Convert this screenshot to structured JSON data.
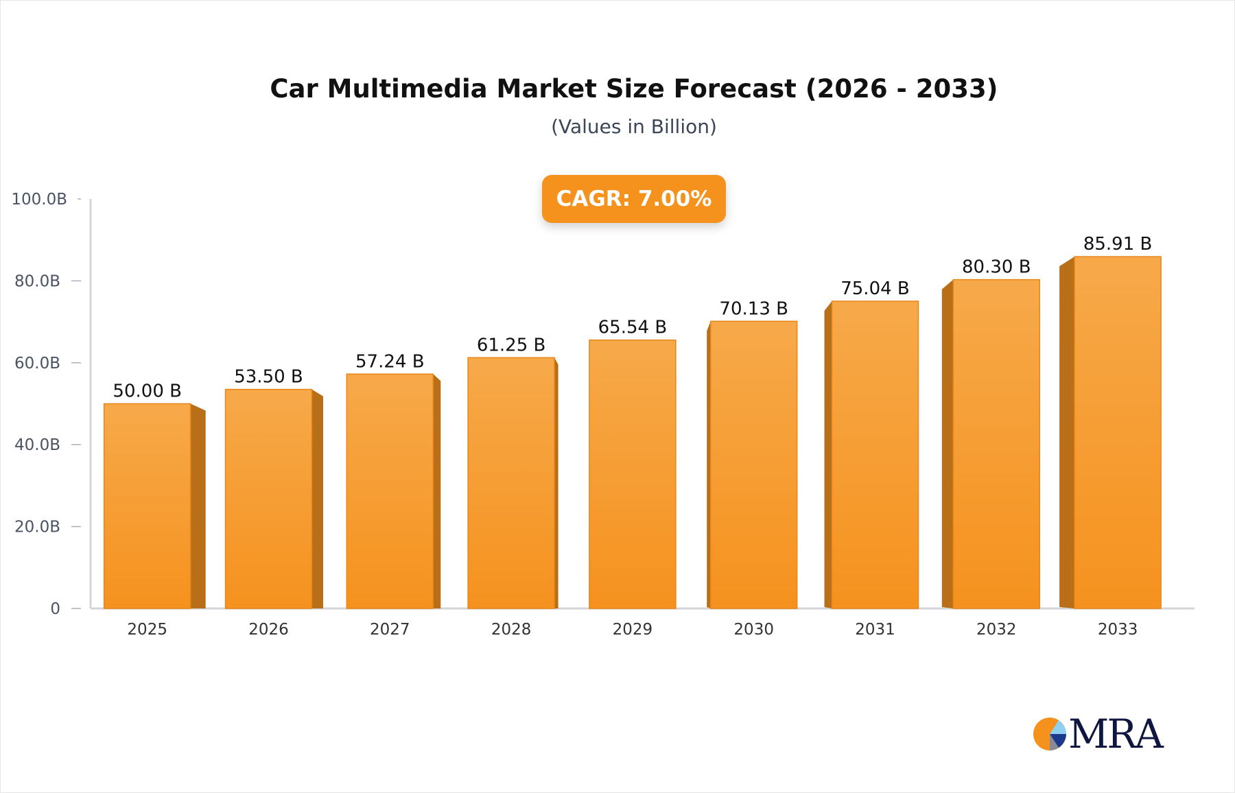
{
  "chart_data": {
    "type": "bar",
    "title": "Car Multimedia Market Size Forecast (2026 - 2033)",
    "subtitle": "(Values in Billion)",
    "annotation": "CAGR: 7.00%",
    "categories": [
      "2025",
      "2026",
      "2027",
      "2028",
      "2029",
      "2030",
      "2031",
      "2032",
      "2033"
    ],
    "values": [
      50.0,
      53.5,
      57.24,
      61.25,
      65.54,
      70.13,
      75.04,
      80.3,
      85.91
    ],
    "data_labels": [
      "50.00 B",
      "53.50 B",
      "57.24 B",
      "61.25 B",
      "65.54 B",
      "70.13 B",
      "75.04 B",
      "80.30 B",
      "85.91 B"
    ],
    "ylim": [
      0,
      100
    ],
    "yticks": [
      0,
      20,
      40,
      60,
      80,
      100
    ],
    "ytick_labels": [
      "0",
      "20.0B",
      "40.0B",
      "60.0B",
      "80.0B",
      "100.0B"
    ],
    "xlabel": "",
    "ylabel": "",
    "grid": false,
    "colors": {
      "bar": "#F5921E",
      "bar_side": "#B86F18",
      "badge": "#F5921E"
    }
  },
  "logo": {
    "text": "MRA"
  }
}
